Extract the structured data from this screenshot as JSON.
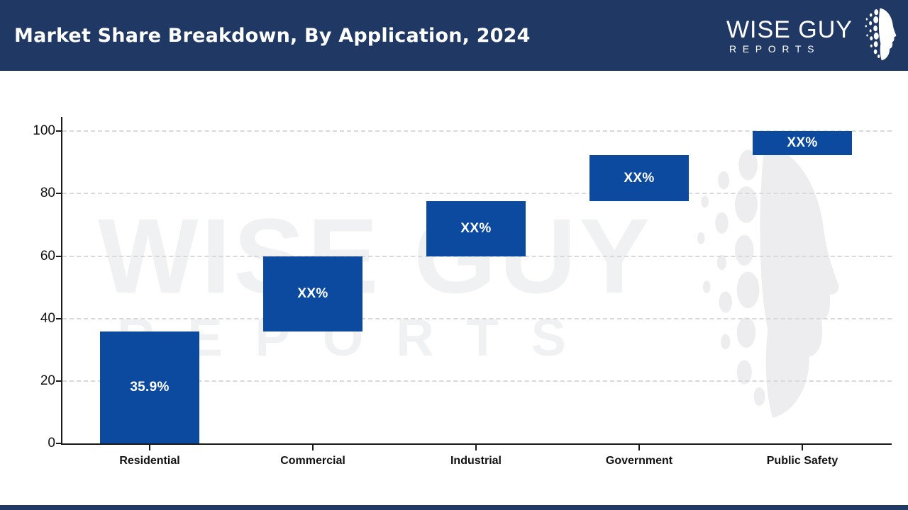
{
  "header": {
    "title": "Market Share Breakdown, By Application, 2024",
    "bg_color": "#203864",
    "logo": {
      "line1": "WISE GUY",
      "line2": "REPORTS"
    }
  },
  "watermark": {
    "line1": "WISE GUY",
    "line2": "REPORTS"
  },
  "chart_data": {
    "type": "bar",
    "subtype": "waterfall",
    "title": "Market Share Breakdown, By Application, 2024",
    "categories": [
      "Residential",
      "Commercial",
      "Industrial",
      "Government",
      "Public Safety"
    ],
    "segments": [
      {
        "category": "Residential",
        "start": 0,
        "end": 35.9,
        "label": "35.9%"
      },
      {
        "category": "Commercial",
        "start": 35.9,
        "end": 59.9,
        "label": "XX%"
      },
      {
        "category": "Industrial",
        "start": 59.9,
        "end": 77.5,
        "label": "XX%"
      },
      {
        "category": "Government",
        "start": 77.5,
        "end": 92.4,
        "label": "XX%"
      },
      {
        "category": "Public Safety",
        "start": 92.4,
        "end": 100,
        "label": "XX%"
      }
    ],
    "yticks": [
      0,
      20,
      40,
      60,
      80,
      100
    ],
    "ylim": [
      0,
      105
    ],
    "grid": "horizontal-dashed",
    "legend": "none",
    "bar_color": "#0b4a9e",
    "bar_label_color": "#ffffff",
    "axis_color": "#1a1a1a",
    "grid_color": "#d9d9d9"
  },
  "footer": {
    "bg_color": "#203864"
  }
}
